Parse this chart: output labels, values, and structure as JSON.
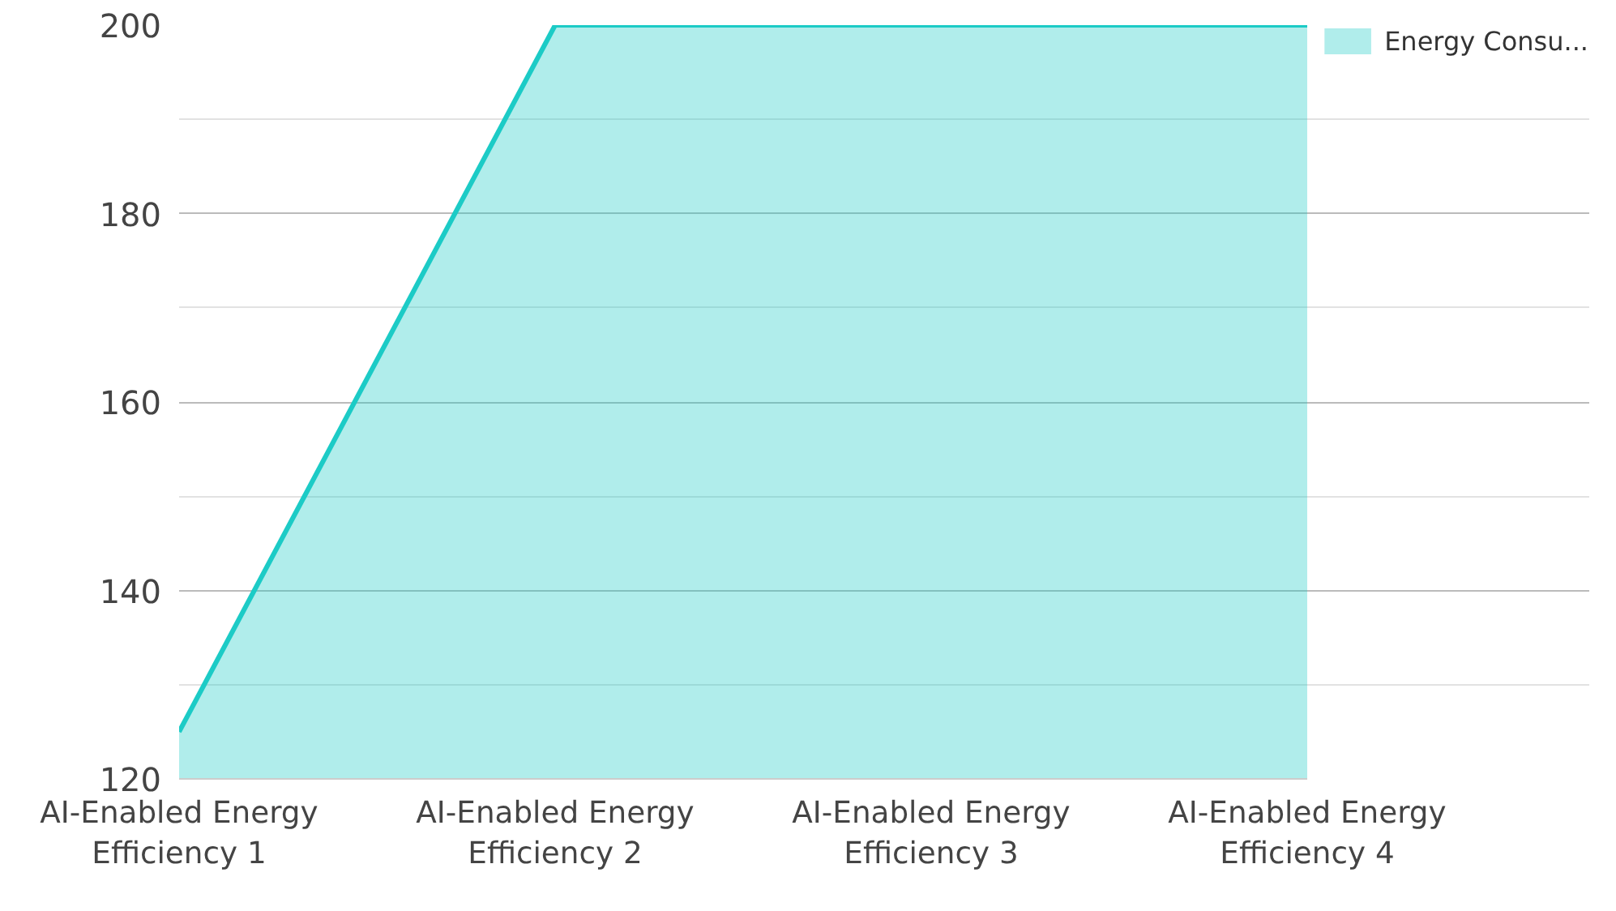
{
  "chart_data": {
    "type": "area",
    "categories": [
      "AI-Enabled Energy Efficiency 1",
      "AI-Enabled Energy Efficiency 2",
      "AI-Enabled Energy Efficiency 3",
      "AI-Enabled Energy Efficiency 4"
    ],
    "series": [
      {
        "name": "Energy Consu...",
        "color": "#1ccbc6",
        "values": [
          125,
          200,
          200,
          200
        ]
      }
    ],
    "ylim": [
      120,
      200
    ],
    "yticks": [
      120,
      140,
      160,
      180,
      200
    ],
    "grid": "y",
    "legend": "top right"
  }
}
